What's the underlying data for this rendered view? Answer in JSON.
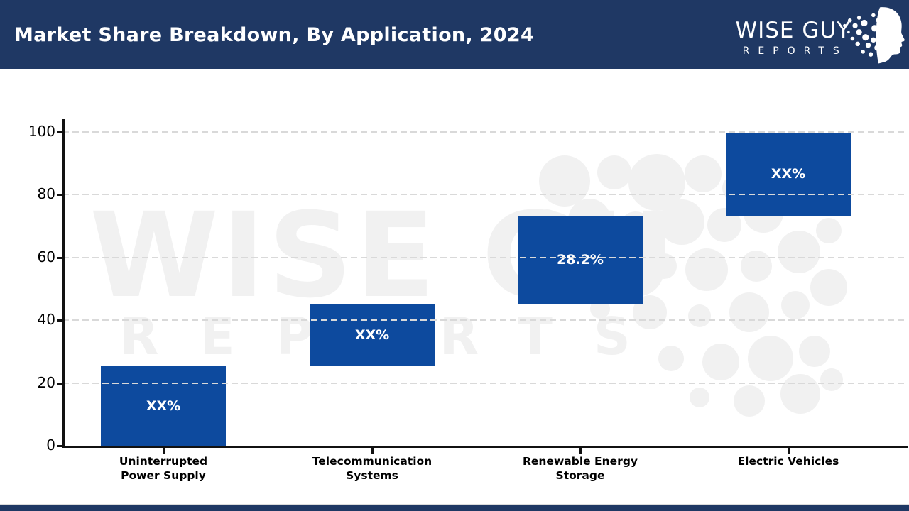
{
  "header": {
    "title": "Market Share Breakdown, By Application, 2024",
    "logo": {
      "line1": "WISE GUY",
      "line2": "REPORTS"
    }
  },
  "watermark": {
    "line1": "WISE GU",
    "line2": "REPORTS"
  },
  "chart_data": {
    "type": "bar",
    "variant": "floating-waterfall-segments",
    "title": "Market Share Breakdown, By Application, 2024",
    "categories": [
      "Uninterrupted Power Supply",
      "Telecommunication Systems",
      "Renewable Energy Storage",
      "Electric Vehicles"
    ],
    "category_lines": [
      [
        "Uninterrupted",
        "Power Supply"
      ],
      [
        "Telecommunication",
        "Systems"
      ],
      [
        "Renewable Energy",
        "Storage"
      ],
      [
        "Electric Vehicles"
      ]
    ],
    "bars": [
      {
        "category": "Uninterrupted Power Supply",
        "start": 0,
        "end": 25.4,
        "label": "XX%"
      },
      {
        "category": "Telecommunication Systems",
        "start": 25.4,
        "end": 45.2,
        "label": "XX%"
      },
      {
        "category": "Renewable Energy Storage",
        "start": 45.2,
        "end": 73.4,
        "label": "28.2%"
      },
      {
        "category": "Electric Vehicles",
        "start": 73.4,
        "end": 99.8,
        "label": "XX%"
      }
    ],
    "xlabel": "",
    "ylabel": "",
    "ylim": [
      0,
      100
    ],
    "yticks": [
      0,
      20,
      40,
      60,
      80,
      100
    ],
    "grid": "horizontal-dashed",
    "legend": "none"
  },
  "colors": {
    "header_bg": "#1f3864",
    "footer_bg": "#1f3864",
    "bar": "#0d4a9e",
    "grid": "#d9d9d9",
    "axis": "#111111",
    "watermark": "#f1f1f1",
    "bar_label": "#ffffff",
    "title_text": "#ffffff"
  }
}
